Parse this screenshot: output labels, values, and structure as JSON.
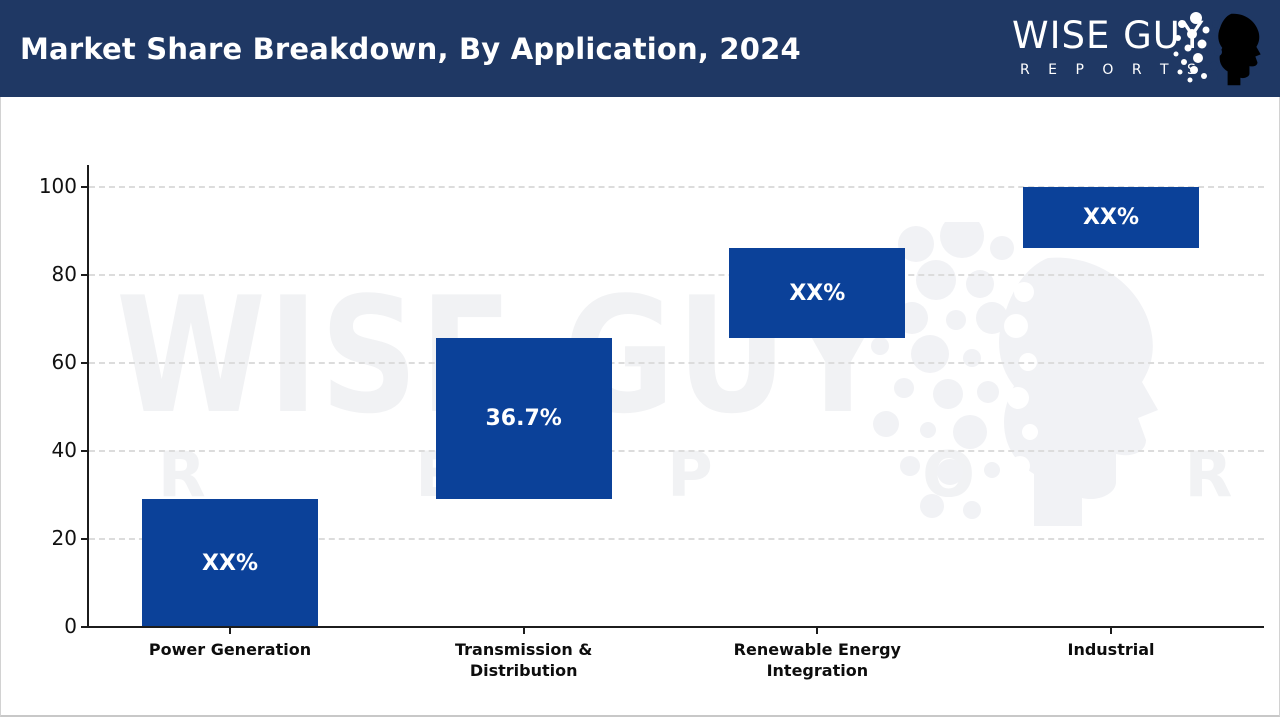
{
  "header": {
    "title": "Market Share Breakdown, By Application, 2024"
  },
  "brand": {
    "line1": "WISE GUY",
    "line2": "R E P O R T S"
  },
  "watermark": {
    "line1": "WISE GUY",
    "line2": "R E P O R T S"
  },
  "colors": {
    "header_bg": "#1f3864",
    "bar_blue": "#0b4199",
    "grid": "#dcdcdc",
    "axis": "#1c1c1c",
    "watermark_gray": "#f1f2f4",
    "bar_label_text": "#ffffff"
  },
  "chart_data": {
    "type": "bar",
    "subtype": "floating-waterfall",
    "title": "Market Share Breakdown, By Application, 2024",
    "categories": [
      "Power Generation",
      "Transmission &\nDistribution",
      "Renewable Energy\nIntegration",
      "Industrial"
    ],
    "segments": [
      {
        "category": "Power Generation",
        "start": 0,
        "end": 29,
        "label": "XX%"
      },
      {
        "category": "Transmission & Distribution",
        "start": 29,
        "end": 65.7,
        "label": "36.7%"
      },
      {
        "category": "Renewable Energy Integration",
        "start": 65.7,
        "end": 86.1,
        "label": "XX%"
      },
      {
        "category": "Industrial",
        "start": 86.1,
        "end": 100,
        "label": "XX%"
      }
    ],
    "ylim": [
      0,
      100
    ],
    "yticks": [
      0,
      20,
      40,
      60,
      80,
      100
    ],
    "xlabel": "",
    "ylabel": "",
    "grid": "horizontal-dashed",
    "legend": false
  }
}
